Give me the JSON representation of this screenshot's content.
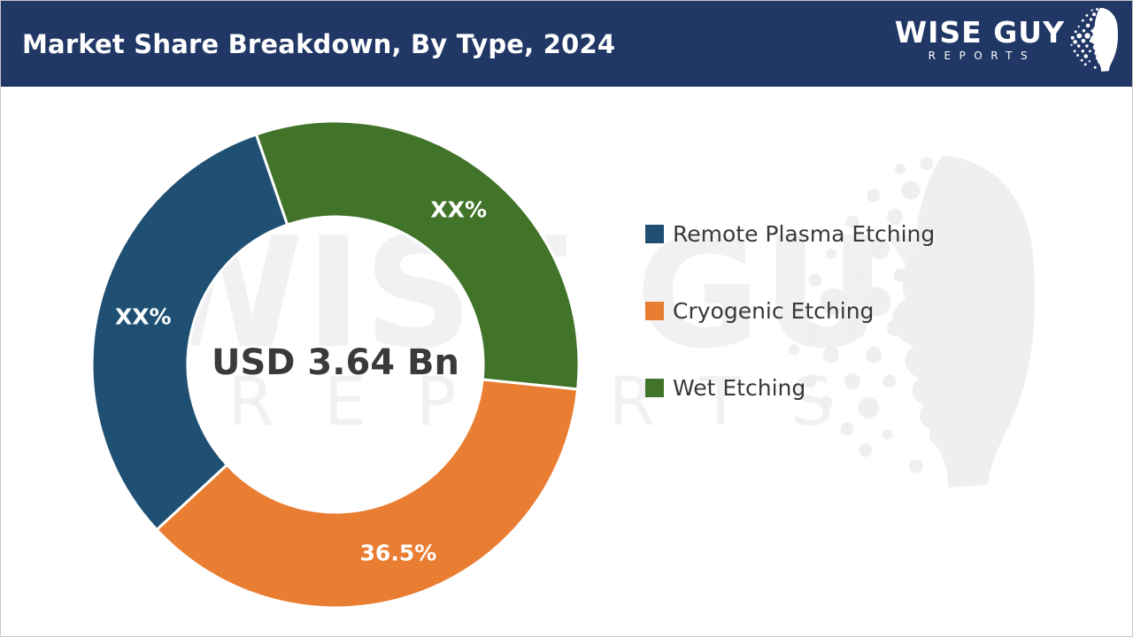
{
  "header": {
    "title": "Market Share Breakdown, By Type, 2024",
    "logo": {
      "line1": "WISE GUY",
      "line2": "REPORTS"
    }
  },
  "watermark": {
    "line1": "WISE GUY",
    "line2": "REPORTS"
  },
  "chart_data": {
    "type": "pie",
    "subtype": "donut",
    "title": "Market Share Breakdown, By Type, 2024",
    "center_label": "USD 3.64 Bn",
    "units": "percent share",
    "start_angle_deg": -19,
    "segments": [
      {
        "name": "Wet Etching",
        "value_pct": 31.9,
        "label": "XX%",
        "color": "#417328"
      },
      {
        "name": "Cryogenic Etching",
        "value_pct": 36.5,
        "label": "36.5%",
        "color": "#E97D31"
      },
      {
        "name": "Remote Plasma Etching",
        "value_pct": 31.6,
        "label": "XX%",
        "color": "#1F5074"
      }
    ],
    "legend": [
      {
        "name": "Remote Plasma Etching",
        "color": "#1F5074"
      },
      {
        "name": "Cryogenic Etching",
        "color": "#E97D31"
      },
      {
        "name": "Wet Etching",
        "color": "#417328"
      }
    ],
    "legend_position": "right"
  },
  "colors": {
    "header_bg": "#213765",
    "page_bg": "#ffffff",
    "center_text": "#3a3a3a",
    "legend_text": "#383838",
    "watermark": "#f1f1f4",
    "segment_divider": "#ffffff",
    "border": "#c9c9c9"
  }
}
